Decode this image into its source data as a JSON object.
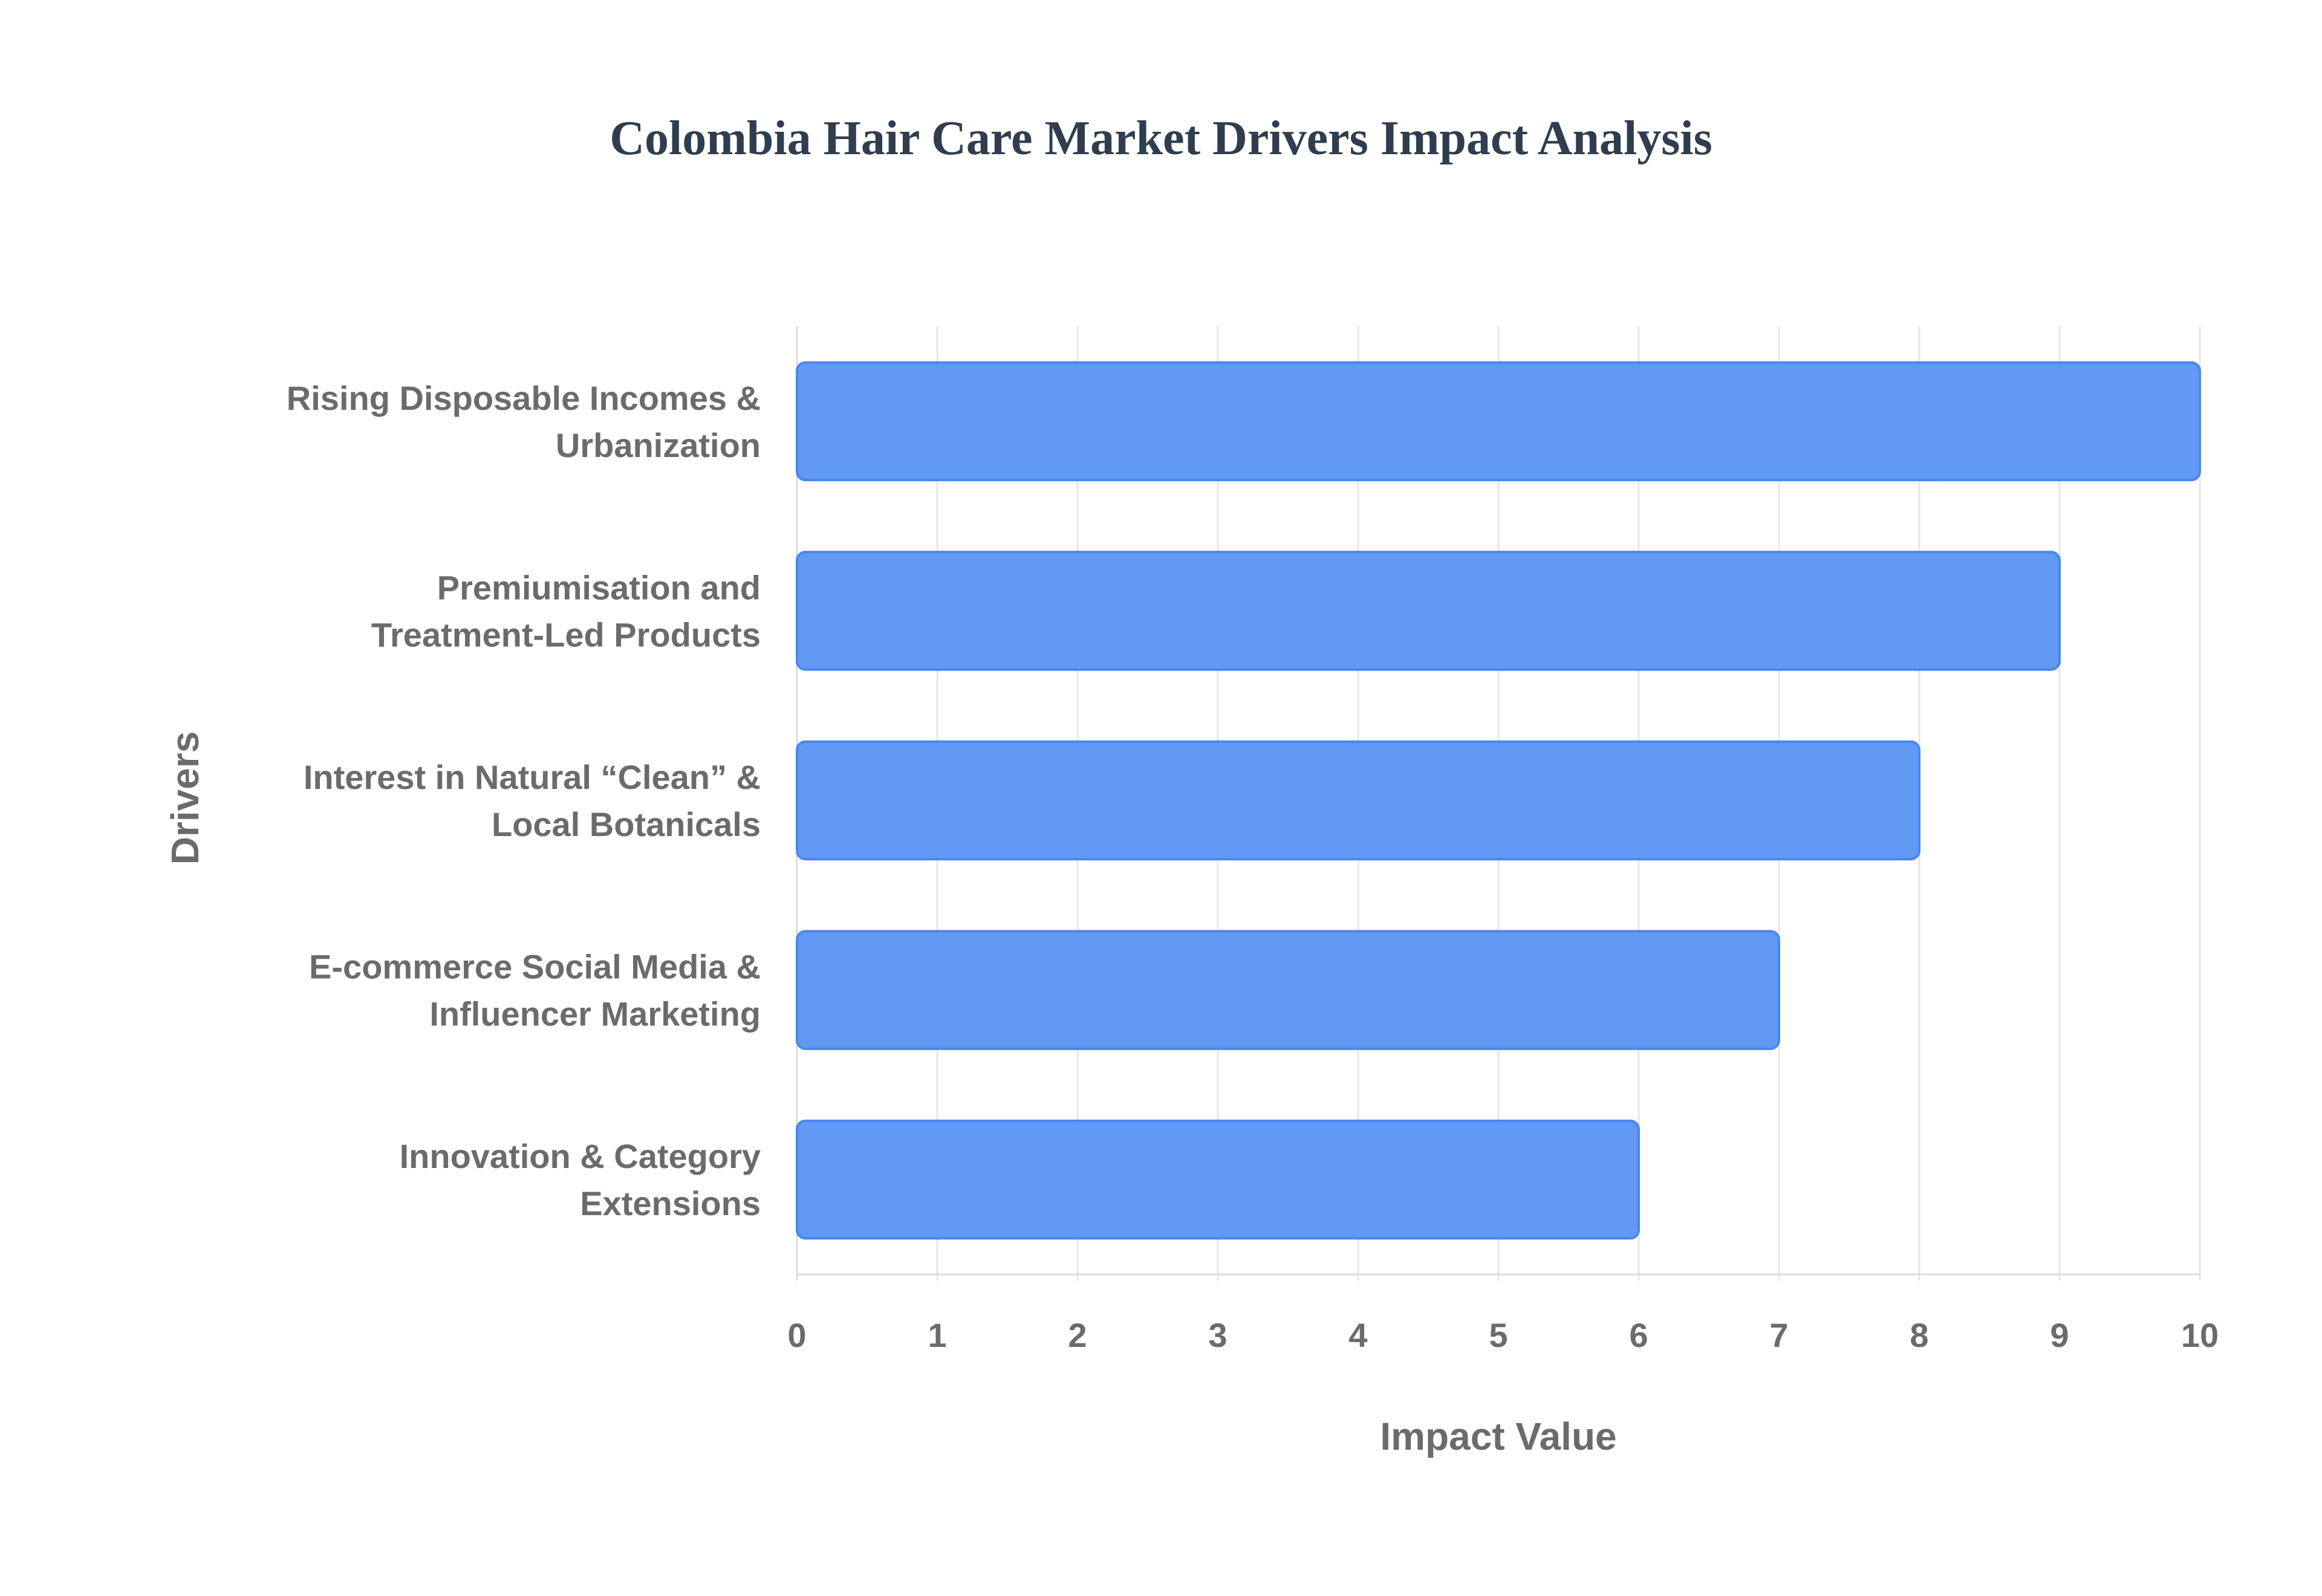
{
  "chart_data": {
    "type": "bar",
    "orientation": "horizontal",
    "title": "Colombia Hair Care Market Drivers Impact Analysis",
    "xlabel": "Impact Value",
    "ylabel": "Drivers",
    "xlim": [
      0,
      10
    ],
    "x_ticks": [
      "0",
      "1",
      "2",
      "3",
      "4",
      "5",
      "6",
      "7",
      "8",
      "9",
      "10"
    ],
    "grid": true,
    "bar_color": "#6199f5",
    "bar_edge_color": "#4a86ee",
    "categories": [
      [
        "Rising Disposable Incomes &",
        "Urbanization"
      ],
      [
        "Premiumisation and",
        "Treatment-Led Products"
      ],
      [
        "Interest in Natural “Clean” &",
        "Local Botanicals"
      ],
      [
        "E-commerce Social Media &",
        "Influencer Marketing"
      ],
      [
        "Innovation & Category",
        "Extensions"
      ]
    ],
    "values": [
      10,
      9,
      8,
      7,
      6
    ]
  }
}
